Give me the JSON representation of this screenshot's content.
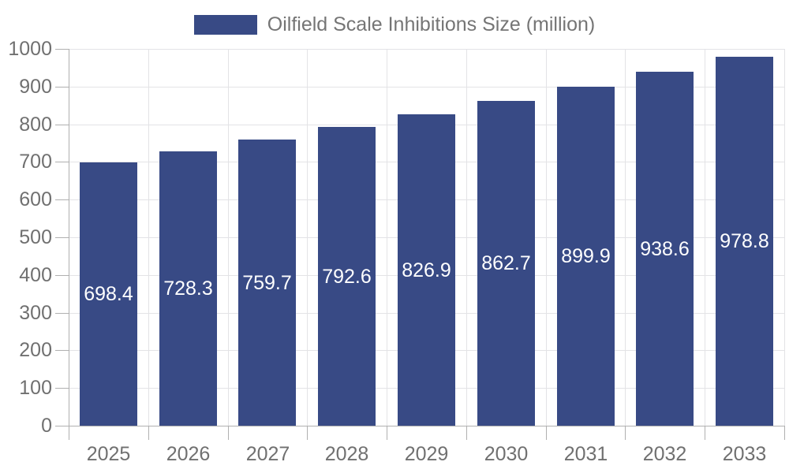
{
  "legend": {
    "label": "Oilfield Scale Inhibitions Size (million)"
  },
  "chart_data": {
    "type": "bar",
    "title": "Oilfield Scale Inhibitions Size (million)",
    "categories": [
      "2025",
      "2026",
      "2027",
      "2028",
      "2029",
      "2030",
      "2031",
      "2032",
      "2033"
    ],
    "values": [
      698.4,
      728.3,
      759.7,
      792.6,
      826.9,
      862.7,
      899.9,
      938.6,
      978.8
    ],
    "value_labels": [
      "698.4",
      "728.3",
      "759.7",
      "792.6",
      "826.9",
      "862.7",
      "899.9",
      "938.6",
      "978.8"
    ],
    "xlabel": "",
    "ylabel": "",
    "ylim": [
      0,
      1000
    ],
    "ytick_step": 100,
    "yticks": [
      0,
      100,
      200,
      300,
      400,
      500,
      600,
      700,
      800,
      900,
      1000
    ],
    "grid": true,
    "legend_position": "top-center",
    "colors": {
      "bar": "#384a85",
      "value_label": "#ffffff",
      "grid_line": "#e3e3e6",
      "axis_line": "#b0b0b0",
      "axis_text": "#707070",
      "legend_text": "#757575",
      "background": "#ffffff"
    }
  }
}
